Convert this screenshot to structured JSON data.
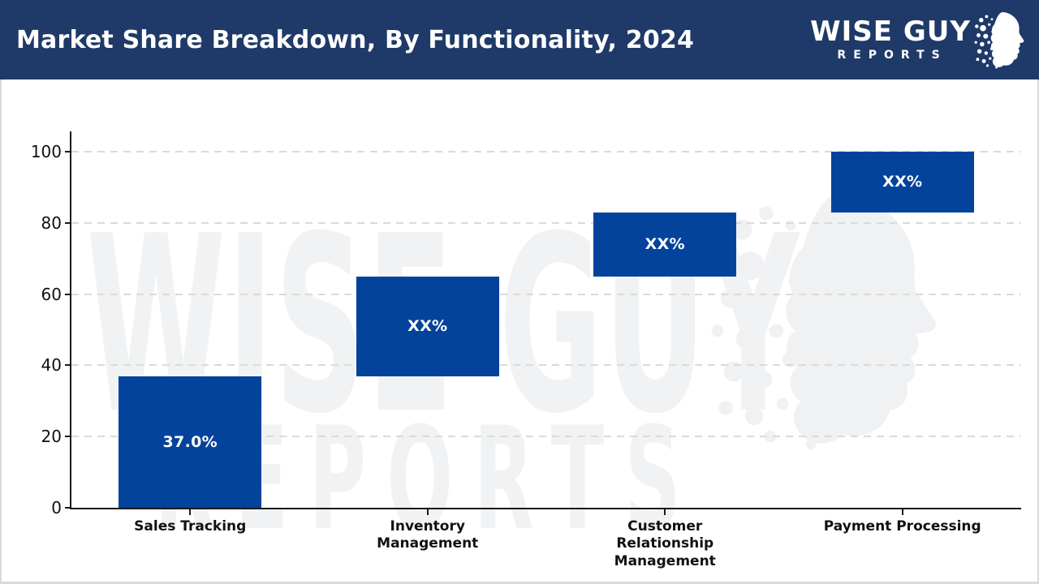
{
  "header": {
    "title": "Market Share Breakdown, By Functionality, 2024",
    "logo": {
      "line1": "WISE GUY",
      "line2": "REPORTS"
    }
  },
  "watermark": {
    "line1": "WISE GUY",
    "line2": "REPORTS"
  },
  "colors": {
    "header_bg": "#1F3A68",
    "bar": "#04439C",
    "bar_label": "#FFFFFF",
    "grid": "#DADADA",
    "axis": "#1A1A1A",
    "watermark": "#F1F2F4"
  },
  "chart_data": {
    "type": "bar",
    "subtype": "waterfall",
    "title": "Market Share Breakdown, By Functionality, 2024",
    "categories": [
      "Sales Tracking",
      "Inventory\nManagement",
      "Customer\nRelationship\nManagement",
      "Payment Processing"
    ],
    "segments": [
      {
        "category": "Sales Tracking",
        "start": 0,
        "end": 37,
        "label": "37.0%"
      },
      {
        "category": "Inventory Management",
        "start": 37,
        "end": 65,
        "label": "XX%"
      },
      {
        "category": "Customer Relationship Management",
        "start": 65,
        "end": 83,
        "label": "XX%"
      },
      {
        "category": "Payment Processing",
        "start": 83,
        "end": 100,
        "label": "XX%"
      }
    ],
    "xlabel": "",
    "ylabel": "",
    "ylim": [
      0,
      100
    ],
    "yticks": [
      0,
      20,
      40,
      60,
      80,
      100
    ],
    "grid": true,
    "legend": false
  }
}
